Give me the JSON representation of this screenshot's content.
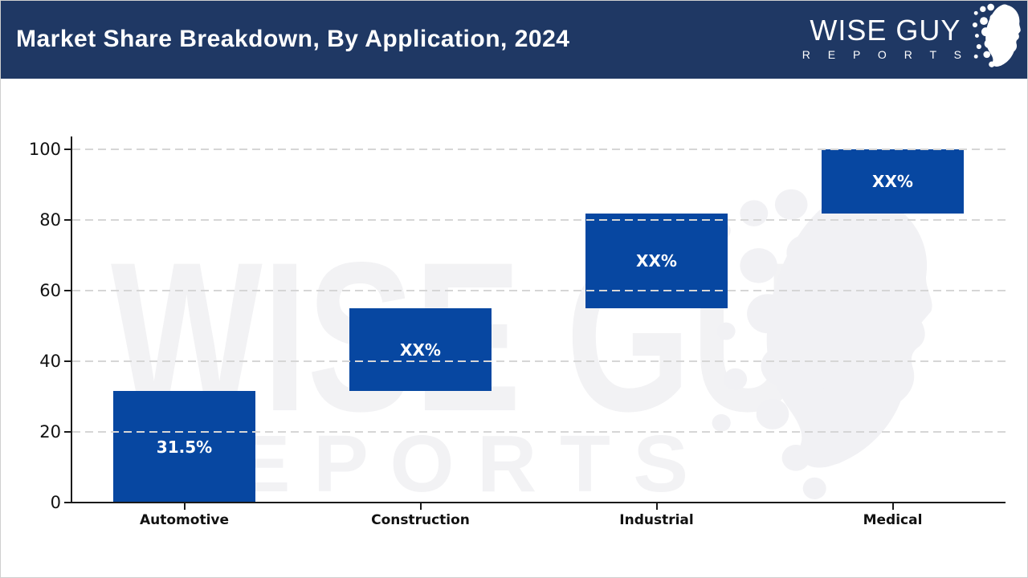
{
  "header": {
    "title": "Market Share Breakdown, By Application, 2024",
    "logo": {
      "line1": "WISE GUY",
      "line2": "R E P O R T S"
    }
  },
  "watermark": {
    "line1": "WISE GUY",
    "line2": "R E P O R T S"
  },
  "chart_data": {
    "type": "bar",
    "subtype": "floating-waterfall",
    "title": "Market Share Breakdown, By Application, 2024",
    "categories": [
      "Automotive",
      "Construction",
      "Industrial",
      "Medical"
    ],
    "segments": [
      {
        "category": "Automotive",
        "start": 0,
        "end": 31.5,
        "label": "31.5%"
      },
      {
        "category": "Construction",
        "start": 31.5,
        "end": 55,
        "label": "XX%"
      },
      {
        "category": "Industrial",
        "start": 55,
        "end": 81.8,
        "label": "XX%"
      },
      {
        "category": "Medical",
        "start": 81.8,
        "end": 100,
        "label": "XX%"
      }
    ],
    "xlabel": "",
    "ylabel": "",
    "ylim": [
      0,
      105
    ],
    "yticks": [
      0,
      20,
      40,
      60,
      80,
      100
    ],
    "grid": "horizontal-dashed",
    "legend": "none",
    "bar_color": "#0747a1",
    "bar_label_color": "#ffffff"
  },
  "colors": {
    "header_bg": "#1f3864",
    "bar": "#0747a1",
    "grid": "#d6d6d6",
    "axis": "#1a1a1a",
    "watermark": "#f2f2f4",
    "text": "#111111"
  }
}
